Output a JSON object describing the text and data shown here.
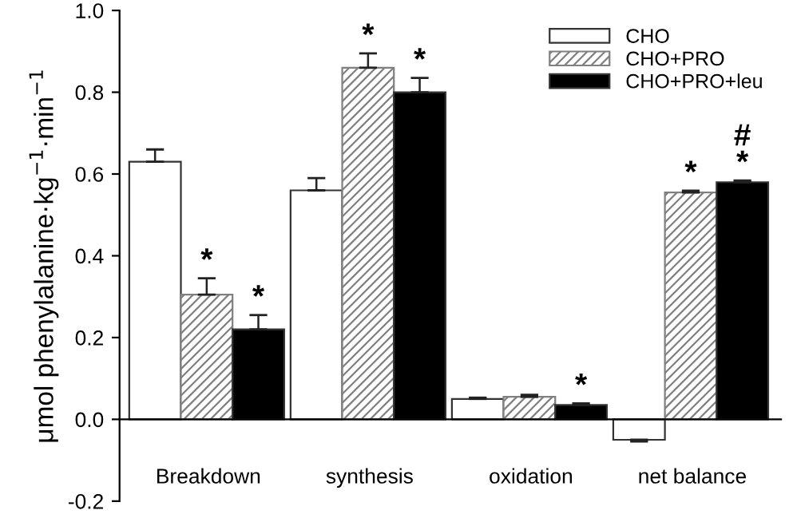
{
  "chart_data": {
    "type": "bar",
    "ylabel": "μmol phenylalanine·kg$^{−1}$·min$^{−1}$",
    "categories": [
      "Breakdown",
      "synthesis",
      "oxidation",
      "net balance"
    ],
    "series": [
      {
        "name": "CHO",
        "color": "#ffffff",
        "values": [
          0.63,
          0.56,
          0.05,
          -0.05
        ],
        "errors": [
          0.03,
          0.03,
          0.003,
          0.004
        ]
      },
      {
        "name": "CHO+PRO",
        "color": "#808080",
        "values": [
          0.305,
          0.86,
          0.055,
          0.555
        ],
        "errors": [
          0.04,
          0.035,
          0.005,
          0.004
        ],
        "value_labels": [
          "*",
          "*",
          null,
          "*"
        ]
      },
      {
        "name": "CHO+PRO+leu",
        "color": "#000000",
        "values": [
          0.22,
          0.8,
          0.035,
          0.58
        ],
        "errors": [
          0.035,
          0.035,
          0.004,
          0.004
        ],
        "value_labels": [
          "*",
          "*",
          "*",
          "#\n*"
        ]
      }
    ],
    "ylim": [
      -0.2,
      1.0
    ],
    "yticks": [
      {
        "value": -0.2,
        "label": "-0.2"
      },
      {
        "value": 0.0,
        "label": "0.0"
      },
      {
        "value": 0.2,
        "label": "0.2"
      },
      {
        "value": 0.4,
        "label": "0.4"
      },
      {
        "value": 0.6,
        "label": "0.6"
      },
      {
        "value": 0.8,
        "label": "0.8"
      },
      {
        "value": 1.0,
        "label": "1.0"
      }
    ],
    "grid": false,
    "legend": "top right"
  }
}
